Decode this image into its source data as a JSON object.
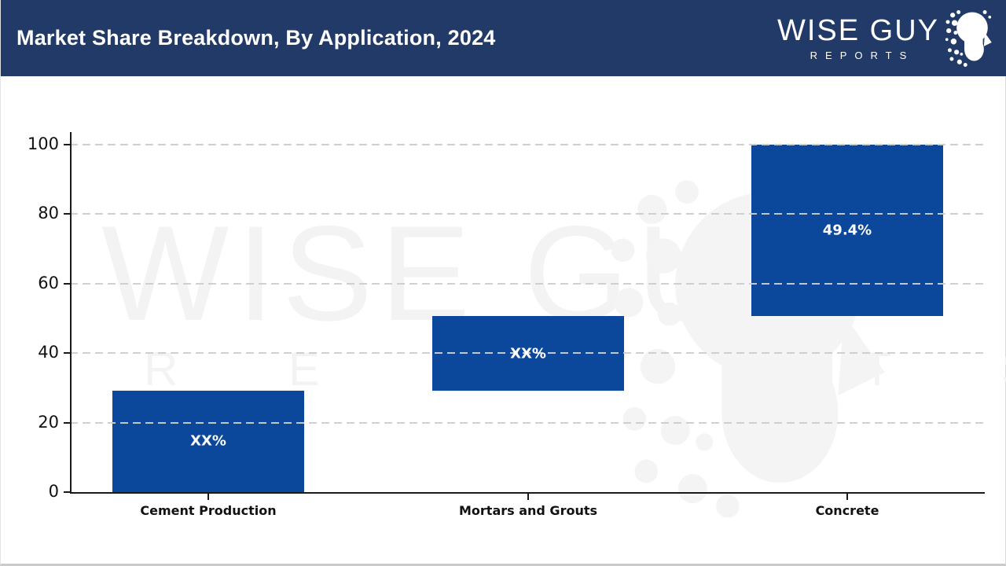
{
  "header": {
    "title": "Market Share Breakdown, By Application, 2024",
    "bg_color": "#223A68",
    "logo": {
      "line1": "WISE GUY",
      "line2": "REPORTS",
      "icon": "face-dots-icon"
    }
  },
  "watermark": {
    "line1": "WISE GUY",
    "line2": "R E P O R T S",
    "icon": "face-dots-icon"
  },
  "chart_data": {
    "type": "bar",
    "variant": "floating_segment_waterfall",
    "title": "Market Share Breakdown, By Application, 2024",
    "categories": [
      "Cement Production",
      "Mortars and Grouts",
      "Concrete"
    ],
    "segments": [
      {
        "category": "Cement Production",
        "start": 0,
        "end": 29.2,
        "label": "XX%"
      },
      {
        "category": "Mortars and Grouts",
        "start": 29.2,
        "end": 50.6,
        "label": "XX%"
      },
      {
        "category": "Concrete",
        "start": 50.6,
        "end": 100,
        "label": "49.4%",
        "value": 49.4
      }
    ],
    "yticks": [
      0,
      20,
      40,
      60,
      80,
      100
    ],
    "ylim": [
      0,
      103.5
    ],
    "xlabel": "",
    "ylabel": "",
    "legend": null,
    "grid": {
      "axis": "y",
      "style": "dashed",
      "drawn_over_bars": true
    },
    "bar_color": "#0B479B",
    "bar_label_color": "#ffffff",
    "axis_color": "#1a1a1a"
  }
}
